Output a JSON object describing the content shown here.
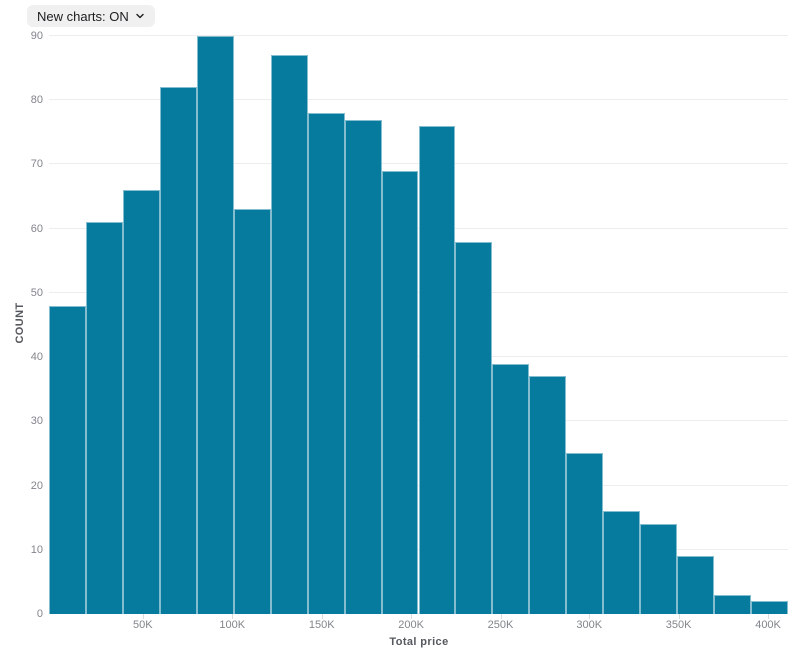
{
  "controls": {
    "new_charts": {
      "label": "New charts: ON",
      "chevron_icon": "chevron-down"
    }
  },
  "chart_data": {
    "type": "bar",
    "subtype": "histogram",
    "title": "",
    "xlabel": "Total price",
    "ylabel": "COUNT",
    "ylim": [
      0,
      90
    ],
    "y_ticks": [
      0,
      10,
      20,
      30,
      40,
      50,
      60,
      70,
      80,
      90
    ],
    "values": [
      48,
      61,
      66,
      82,
      90,
      63,
      87,
      78,
      77,
      69,
      76,
      58,
      39,
      37,
      25,
      16,
      14,
      9,
      3,
      2
    ],
    "x_ticks": [
      {
        "label": "50K",
        "pct": 12.7
      },
      {
        "label": "100K",
        "pct": 24.8
      },
      {
        "label": "150K",
        "pct": 36.9
      },
      {
        "label": "200K",
        "pct": 49.0
      },
      {
        "label": "250K",
        "pct": 61.1
      },
      {
        "label": "300K",
        "pct": 73.1
      },
      {
        "label": "350K",
        "pct": 85.2
      },
      {
        "label": "400K",
        "pct": 97.3
      }
    ],
    "legend": "none",
    "grid": "horizontal",
    "colors": {
      "bar_fill": "#077b9e",
      "bar_border": "rgba(255,255,255,0.5)",
      "gridline": "#ededed",
      "tick_label": "#82858c",
      "axis_label": "#55585e"
    }
  }
}
